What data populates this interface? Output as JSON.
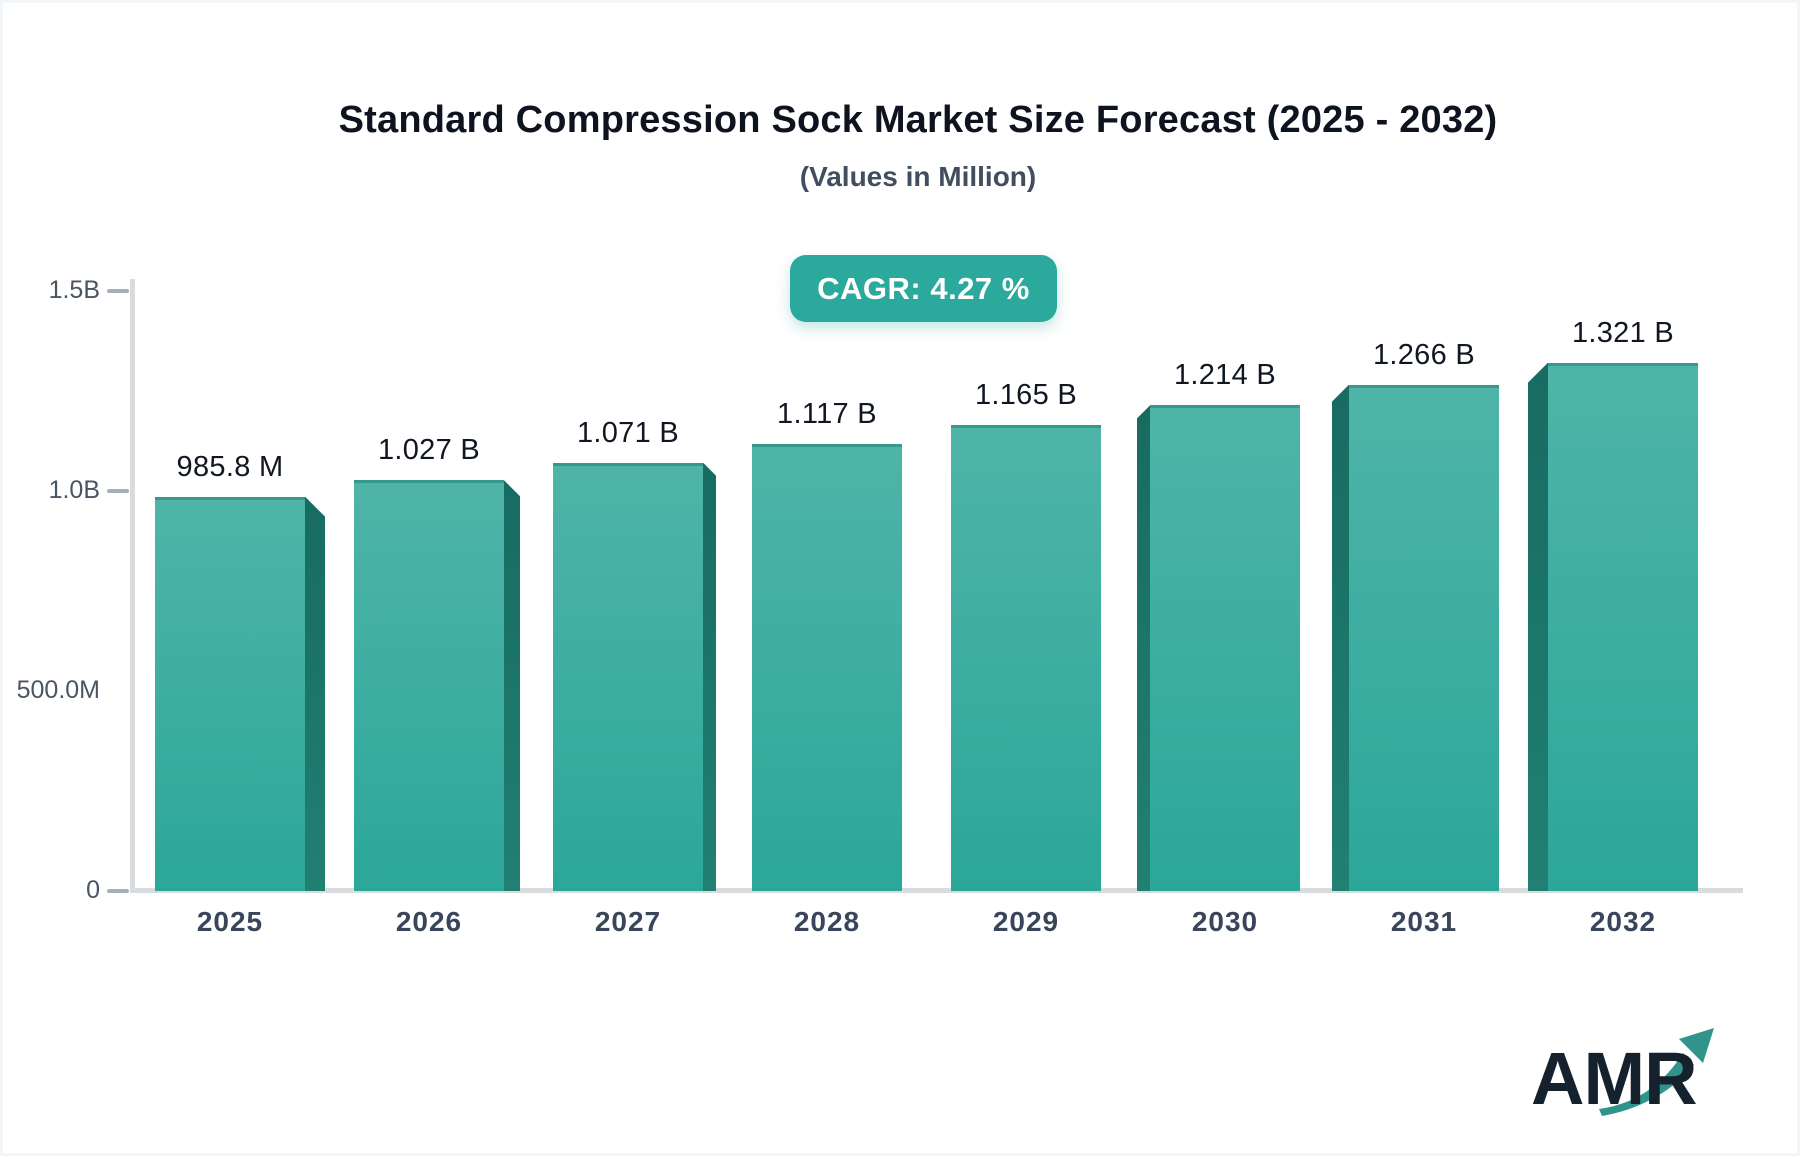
{
  "header": {
    "title": "Standard Compression Sock Market Size Forecast (2025 - 2032)",
    "subtitle": "(Values in Million)",
    "cagr_badge": "CAGR: 4.27 %"
  },
  "chart_data": {
    "type": "bar",
    "title": "Standard Compression Sock Market Size Forecast (2025 - 2032)",
    "subtitle": "(Values in Million)",
    "unit": "Million",
    "cagr_percent": 4.27,
    "categories": [
      "2025",
      "2026",
      "2027",
      "2028",
      "2029",
      "2030",
      "2031",
      "2032"
    ],
    "values_millions": [
      985.8,
      1027,
      1071,
      1117,
      1165,
      1214,
      1266,
      1321
    ],
    "value_labels": [
      "985.8 M",
      "1.027 B",
      "1.071 B",
      "1.117 B",
      "1.165 B",
      "1.214 B",
      "1.266 B",
      "1.321 B"
    ],
    "ylim_millions": [
      0,
      1500
    ],
    "yticks": [
      {
        "label": "1.5B",
        "millions": 1500,
        "dash": true
      },
      {
        "label": "1.0B",
        "millions": 1000,
        "dash": true
      },
      {
        "label": "500.0M",
        "millions": 500,
        "dash": false
      },
      {
        "label": "0",
        "millions": 0,
        "dash": true
      }
    ],
    "xlabel": "",
    "ylabel": "",
    "grid": false,
    "legend_position": "none",
    "bar_color": "#2ba79a"
  },
  "logo": {
    "text": "AMR"
  },
  "colors": {
    "bar_top": "#4fb4a8",
    "bar_bottom": "#2ba79a",
    "bar_edge": "#37998c",
    "bar_side_top": "#176b60",
    "bar_side_bottom": "#218073",
    "axis": "#d9dcdf",
    "tick_dash": "#a8aeb6",
    "badge_bg": "#2aa99c",
    "title": "#0e1320",
    "subtitle": "#414e5e",
    "value_label": "#101722",
    "year_label": "#38455a",
    "ytick_label": "#4a5663",
    "logo_text": "#15222e",
    "logo_arrow": "#31948b"
  }
}
